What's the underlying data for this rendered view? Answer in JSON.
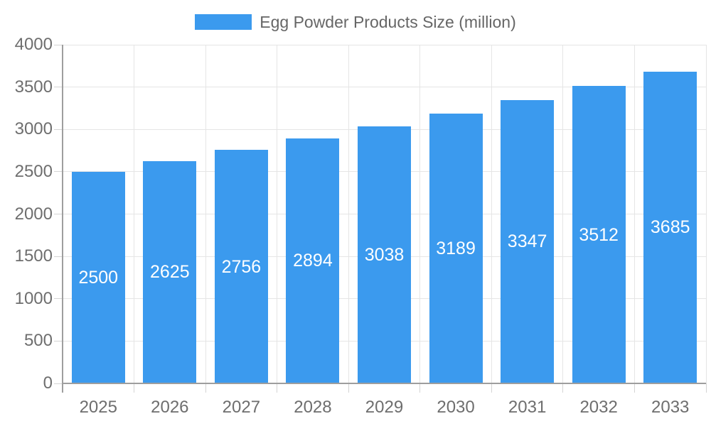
{
  "chart_data": {
    "type": "bar",
    "legend": "Egg Powder Products Size (million)",
    "categories": [
      "2025",
      "2026",
      "2027",
      "2028",
      "2029",
      "2030",
      "2031",
      "2032",
      "2033"
    ],
    "values": [
      2500,
      2625,
      2756,
      2894,
      3038,
      3189,
      3347,
      3512,
      3685
    ],
    "title": "",
    "xlabel": "",
    "ylabel": "",
    "ylim": [
      0,
      4000
    ],
    "ytick_step": 500,
    "yticks": [
      0,
      500,
      1000,
      1500,
      2000,
      2500,
      3000,
      3500,
      4000
    ],
    "grid": true,
    "legend_position": "top-center",
    "value_labels": "inside-center-white"
  },
  "colors": {
    "bar": "#3b9aee",
    "grid": "#e5e5e5",
    "axis": "#9e9e9e",
    "tick": "#d4d4d4",
    "axis_text": "#6e6e6e",
    "legend_text": "#666666",
    "value_text": "#ffffff",
    "background": "#ffffff"
  }
}
